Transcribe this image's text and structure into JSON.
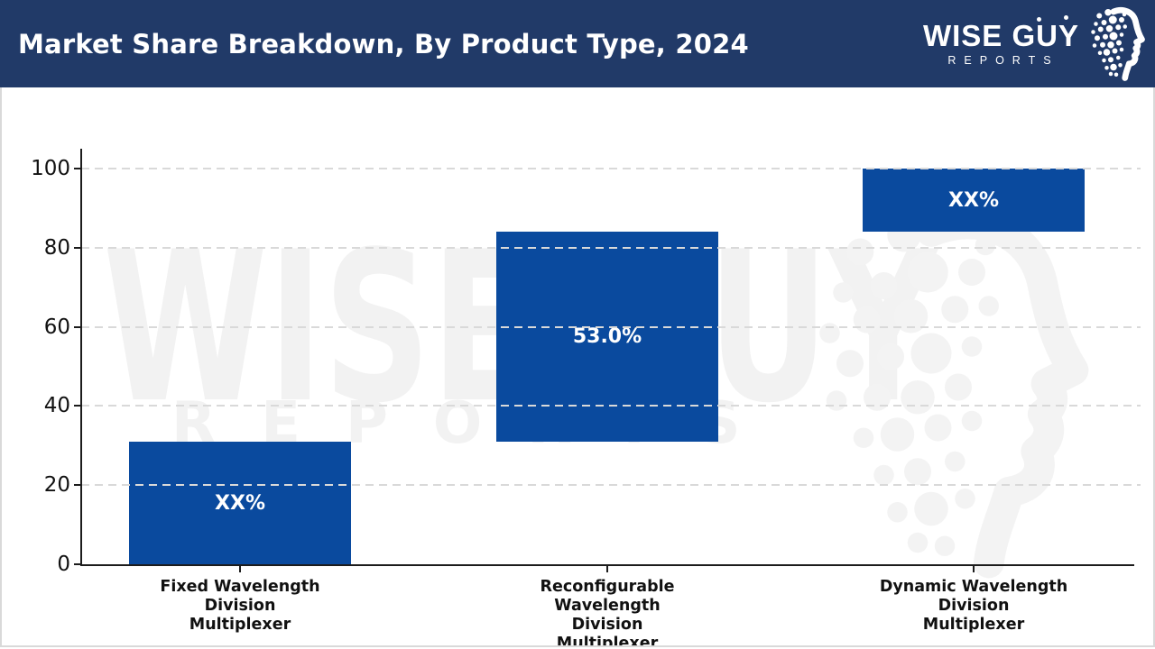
{
  "page": {
    "title": "Market Share Breakdown, By Product Type, 2024"
  },
  "brand": {
    "name_top": "WISE GUY",
    "name_bottom": "REPORTS",
    "head_icon": "dotted-head-profile-icon"
  },
  "watermark": {
    "line1": "WISE GUY",
    "line2": "REPORTS"
  },
  "chart_data": {
    "type": "bar",
    "variant": "waterfall",
    "title": "Market Share Breakdown, By Product Type, 2024",
    "categories": [
      "Fixed Wavelength\nDivision\nMultiplexer",
      "Reconfigurable\nWavelength\nDivision\nMultiplexer",
      "Dynamic Wavelength\nDivision\nMultiplexer"
    ],
    "segments": [
      {
        "category": "Fixed Wavelength Division Multiplexer",
        "start": 0,
        "end": 31,
        "value_label": "XX%"
      },
      {
        "category": "Reconfigurable Wavelength Division Multiplexer",
        "start": 31,
        "end": 84,
        "value_label": "53.0%"
      },
      {
        "category": "Dynamic Wavelength Division Multiplexer",
        "start": 84,
        "end": 100,
        "value_label": "XX%"
      }
    ],
    "xlabel": "",
    "ylabel": "",
    "ylim": [
      0,
      105
    ],
    "yticks": [
      0,
      20,
      40,
      60,
      80,
      100
    ],
    "grid": "horizontal-dashed-over-bars",
    "legend": "none",
    "bar_color": "#0a4a9e",
    "bar_label_color": "#ffffff"
  },
  "colors": {
    "header_bg": "#213a68",
    "header_text": "#ffffff",
    "bar": "#0a4a9e",
    "grid": "#d9d9d9",
    "axis": "#1c1c1c",
    "watermark": "#f2f2f2",
    "frame_border": "#d9d9d9"
  }
}
